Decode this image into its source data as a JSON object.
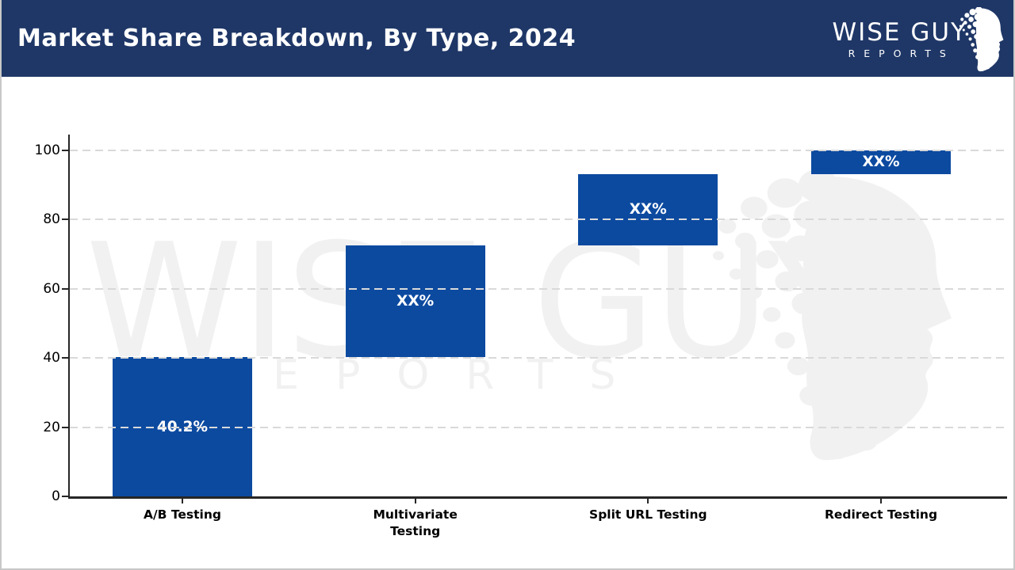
{
  "header": {
    "title": "Market Share Breakdown, By Type, 2024",
    "logo": {
      "brand_line1": "WISE GUY",
      "brand_line2": "REPORTS",
      "face_icon": "dotted-face-profile-icon"
    }
  },
  "watermark": {
    "line1": "WISE GUY",
    "line2": "REPORTS",
    "face_icon": "dotted-face-profile-icon"
  },
  "colors": {
    "header_bg": "#1f3767",
    "bar_fill": "#0c4aa0",
    "gridline": "#d9d9d9",
    "axis": "#262626",
    "watermark": "#f1f1f1",
    "bar_label_text": "#ffffff",
    "page_border": "#c8c8c8"
  },
  "chart_data": {
    "type": "bar",
    "subtype": "waterfall",
    "title": "Market Share Breakdown, By Type, 2024",
    "categories": [
      "A/B Testing",
      "Multivariate\nTesting",
      "Split URL Testing",
      "Redirect Testing"
    ],
    "segments": [
      {
        "category": "A/B Testing",
        "start": 0,
        "end": 40.2,
        "label": "40.2%"
      },
      {
        "category": "Multivariate Testing",
        "start": 40.2,
        "end": 72.5,
        "label": "XX%"
      },
      {
        "category": "Split URL Testing",
        "start": 72.5,
        "end": 93,
        "label": "XX%"
      },
      {
        "category": "Redirect Testing",
        "start": 93,
        "end": 100,
        "label": "XX%"
      }
    ],
    "xlabel": "",
    "ylabel": "",
    "ylim": [
      0,
      100
    ],
    "yticks": [
      0,
      20,
      40,
      60,
      80,
      100
    ],
    "grid": "horizontal-dashed",
    "gridlines_above_bars": true,
    "legend": "none"
  }
}
